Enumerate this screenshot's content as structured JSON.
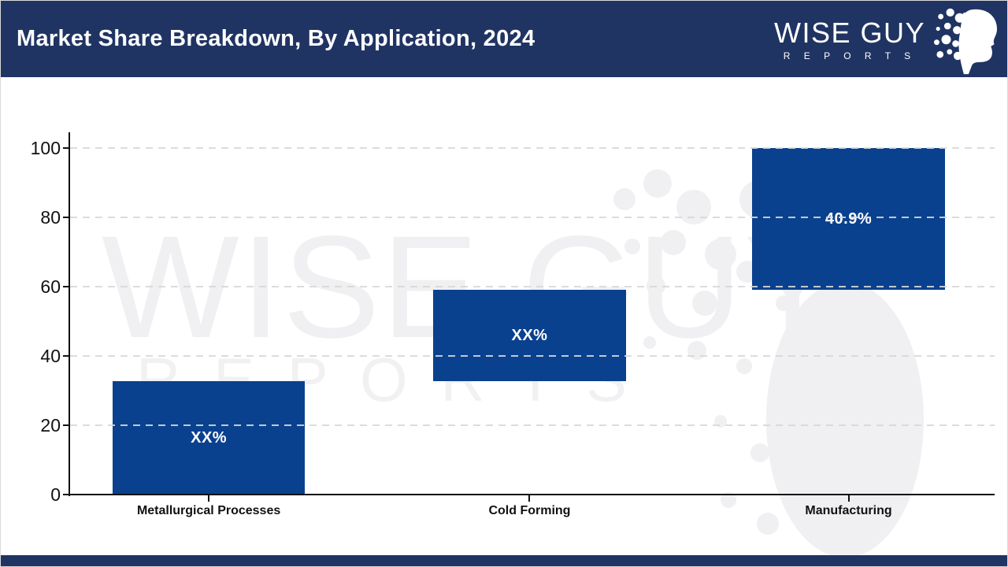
{
  "header": {
    "title": "Market Share Breakdown, By Application, 2024",
    "logo": {
      "wordmark": "WISE GUY",
      "subtext": "R E P O R T S"
    }
  },
  "watermark": {
    "wordmark": "WISE GUY",
    "subtext": "R E P O R T S"
  },
  "chart_data": {
    "type": "bar",
    "subtype": "floating-waterfall",
    "title": "Market Share Breakdown, By Application, 2024",
    "categories": [
      "Metallurgical Processes",
      "Cold Forming",
      "Manufacturing"
    ],
    "segments": [
      {
        "category": "Metallurgical Processes",
        "start": 0,
        "end": 32.7,
        "label": "XX%"
      },
      {
        "category": "Cold Forming",
        "start": 32.7,
        "end": 59.0,
        "label": "XX%"
      },
      {
        "category": "Manufacturing",
        "start": 59.0,
        "end": 99.9,
        "label": "40.9%"
      }
    ],
    "yticks": [
      0,
      20,
      40,
      60,
      80,
      100
    ],
    "ylim": [
      0,
      104.5
    ],
    "xlabel": "",
    "ylabel": "",
    "grid": "horizontal-dashed",
    "legend": "none",
    "bar_color": "#0a418f",
    "bar_label_color": "#ffffff"
  },
  "colors": {
    "header_bg": "#203463",
    "footer_bg": "#203463",
    "bar": "#0a418f",
    "gridline": "#d8d8d8",
    "axis": "#111111",
    "watermark": "#f0f0f2",
    "background": "#ffffff"
  }
}
